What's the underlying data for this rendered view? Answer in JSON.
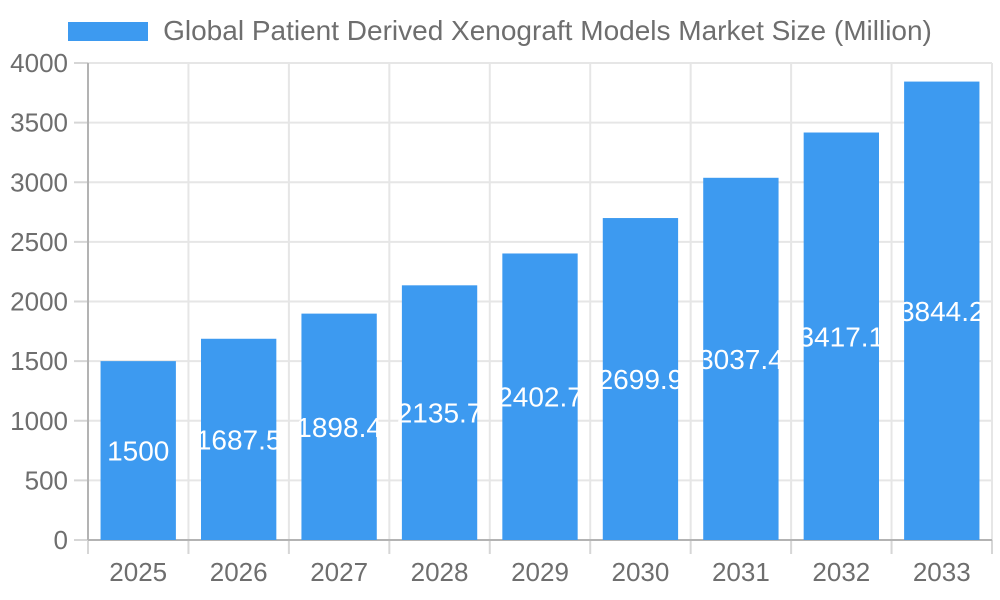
{
  "legend": {
    "label": "Global Patient Derived Xenograft Models Market Size (Million)"
  },
  "chart_data": {
    "type": "bar",
    "title": "Global Patient Derived Xenograft Models Market Size (Million)",
    "legend_position": "top",
    "categories": [
      "2025",
      "2026",
      "2027",
      "2028",
      "2029",
      "2030",
      "2031",
      "2032",
      "2033"
    ],
    "series": [
      {
        "name": "Global Patient Derived Xenograft Models Market Size (Million)",
        "values": [
          1500,
          1687.5,
          1898.4,
          2135.7,
          2402.7,
          2699.9,
          3037.4,
          3417.1,
          3844.2
        ]
      }
    ],
    "value_labels": [
      "1500",
      "1687.5",
      "1898.4",
      "2135.7",
      "2402.7",
      "2699.9",
      "3037.4",
      "3417.1",
      "3844.2"
    ],
    "xlabel": "",
    "ylabel": "",
    "ylim": [
      0,
      4000
    ],
    "ytick_labels": [
      "0",
      "500",
      "1000",
      "1500",
      "2000",
      "2500",
      "3000",
      "3500",
      "4000"
    ],
    "grid": true,
    "colors": {
      "bar": "#3d9af0",
      "bar_label": "#ffffff",
      "axis_text": "#6e6e6e",
      "grid_line": "#e6e6e6",
      "axis_line": "#b3b3b3",
      "tick_mark": "#d6d6d6",
      "background": "#ffffff"
    }
  }
}
